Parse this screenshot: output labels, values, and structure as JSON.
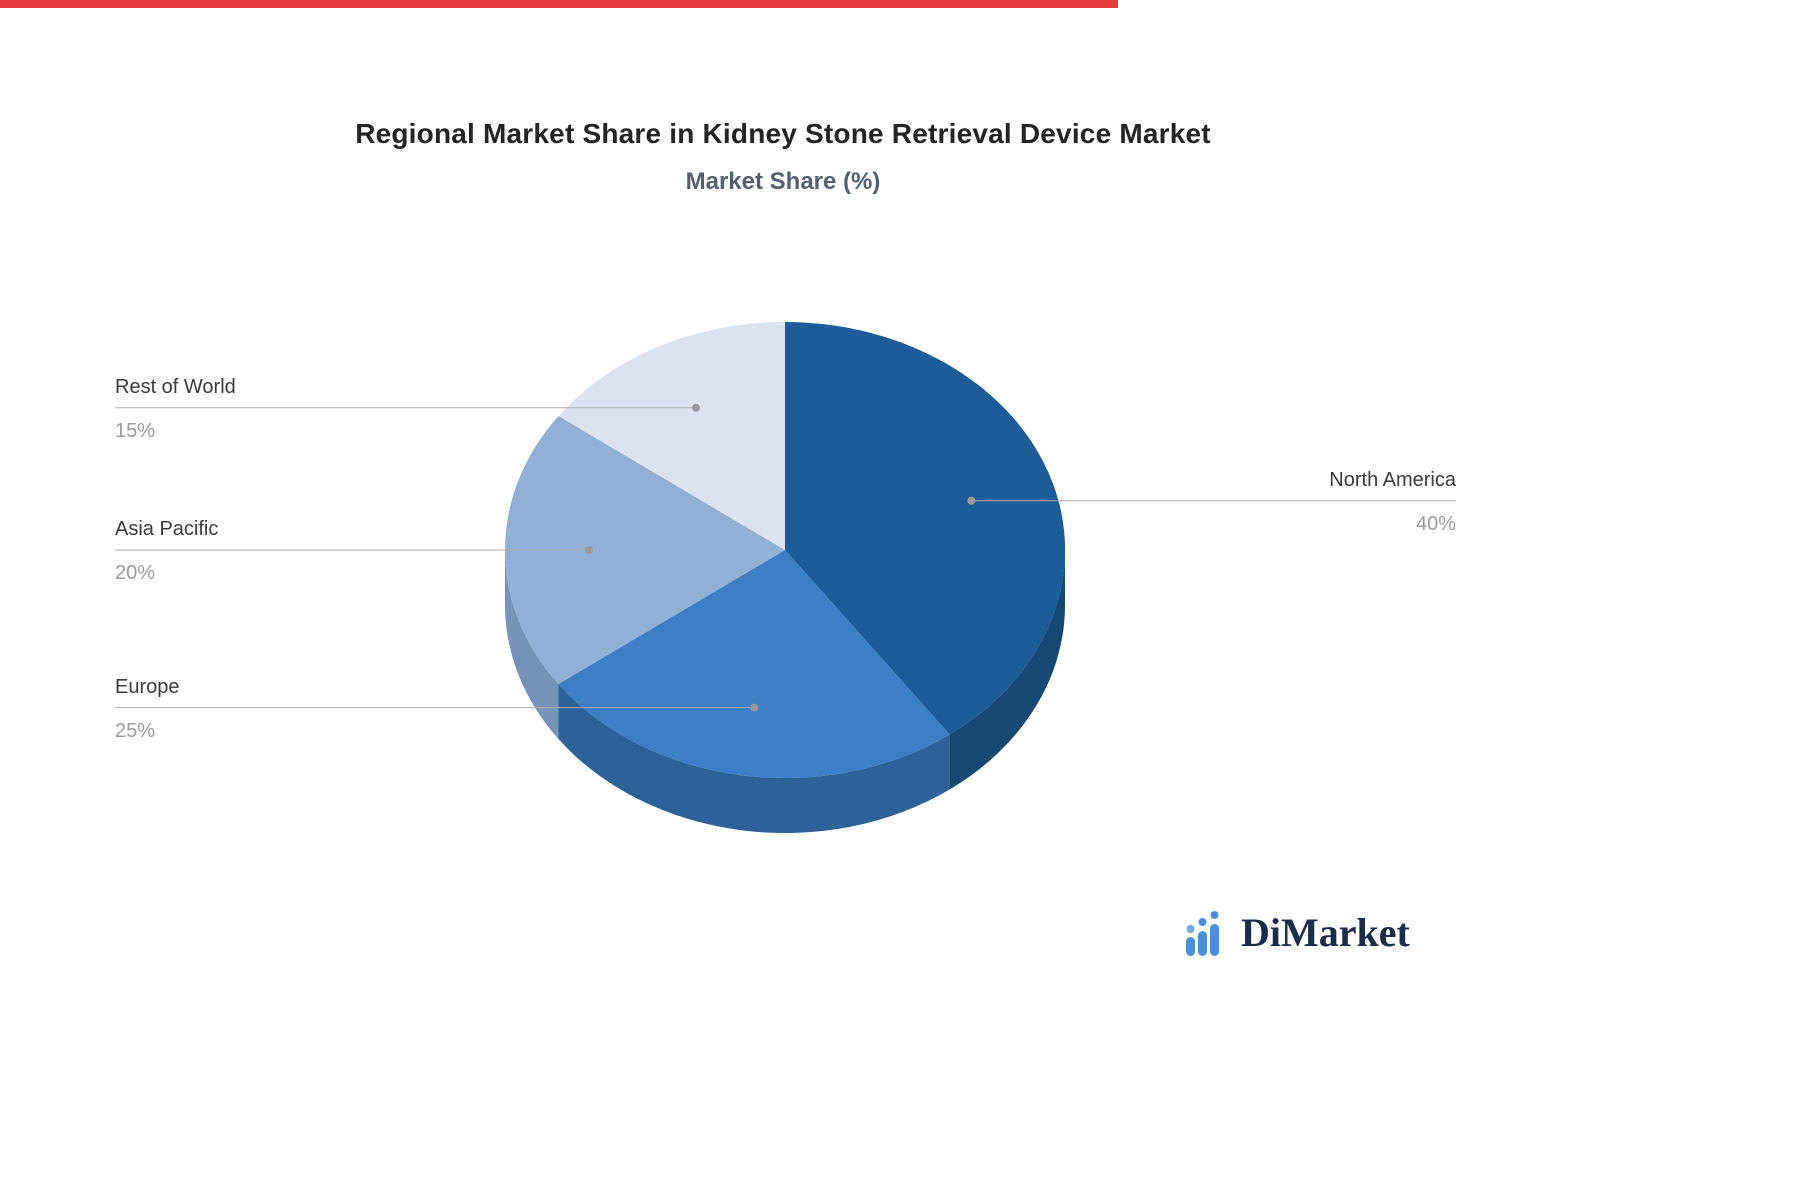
{
  "top_bar": {
    "color": "#e23b3b"
  },
  "chart_data": {
    "type": "pie",
    "title": "Regional Market Share in Kidney Stone Retrieval Device Market",
    "subtitle": "Market Share (%)",
    "unit": "%",
    "direction": "clockwise",
    "start_angle_deg": 0,
    "style": "3d-pie",
    "legend_position": "none",
    "labels_outside": true,
    "slices": [
      {
        "label": "North America",
        "value": 40,
        "pct": "40%",
        "color": "#1E5C99",
        "side": "#154873"
      },
      {
        "label": "Europe",
        "value": 25,
        "pct": "25%",
        "color": "#3D7EC6",
        "side": "#2D6298"
      },
      {
        "label": "Asia Pacific",
        "value": 20,
        "pct": "20%",
        "color": "#92AFD6",
        "side": "#7893B8"
      },
      {
        "label": "Rest of World",
        "value": 15,
        "pct": "15%",
        "color": "#DCE3EE",
        "side": "#BCC7D8"
      }
    ],
    "leader_line_color": "#adadad",
    "leader_dot_color": "#9a9a9a"
  },
  "brand": {
    "name": "DiMarket",
    "icon": "bar-chart-icon",
    "icon_color": "#4A90D9",
    "text_color": "#1c2b4a"
  }
}
